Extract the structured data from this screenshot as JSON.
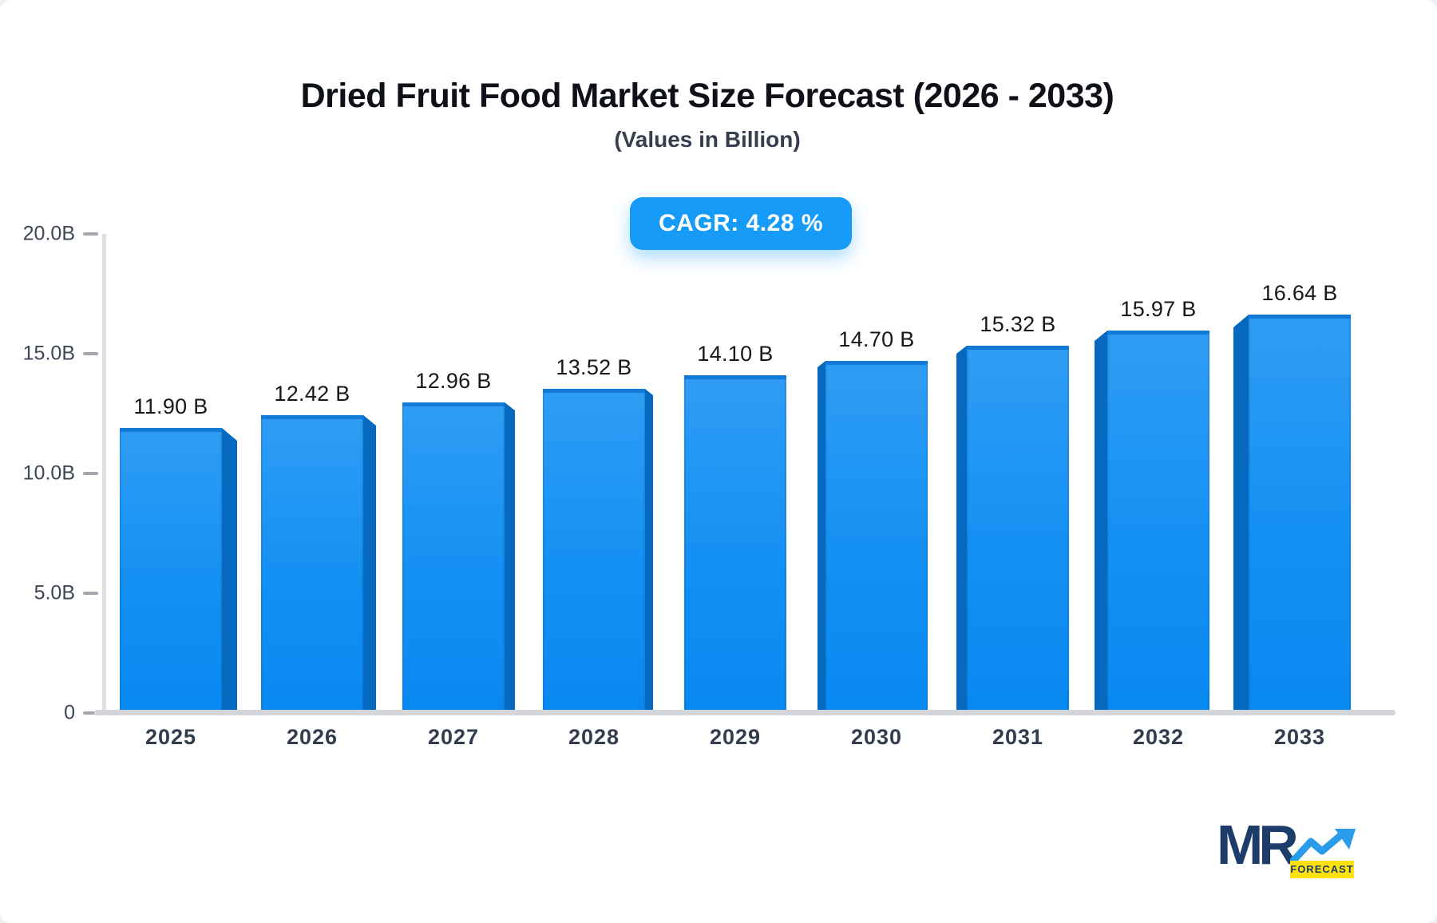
{
  "header": {
    "title": "Dried Fruit Food Market Size Forecast (2026 - 2033)",
    "subtitle": "(Values in Billion)",
    "cagr_badge": "CAGR: 4.28 %"
  },
  "chart_data": {
    "type": "bar",
    "title": "Dried Fruit Food Market Size Forecast (2026 - 2033)",
    "subtitle": "(Values in Billion)",
    "cagr_percent": 4.28,
    "categories": [
      "2025",
      "2026",
      "2027",
      "2028",
      "2029",
      "2030",
      "2031",
      "2032",
      "2033"
    ],
    "values": [
      11.9,
      12.42,
      12.96,
      13.52,
      14.1,
      14.7,
      15.32,
      15.97,
      16.64
    ],
    "value_labels": [
      "11.90 B",
      "12.42 B",
      "12.96 B",
      "13.52 B",
      "14.10 B",
      "14.70 B",
      "15.32 B",
      "15.97 B",
      "16.64 B"
    ],
    "xlabel": "",
    "ylabel": "",
    "ylim": [
      0,
      20
    ],
    "yticks": [
      {
        "label": "0",
        "value": 0
      },
      {
        "label": "5.0B",
        "value": 5
      },
      {
        "label": "10.0B",
        "value": 10
      },
      {
        "label": "15.0B",
        "value": 15
      },
      {
        "label": "20.0B",
        "value": 20
      }
    ],
    "grid": false,
    "legend": false
  },
  "colors": {
    "bar_face_top": "#2f9df5",
    "bar_face_bottom": "#0889f1",
    "bar_side": "#0569bf",
    "bar_top_strip": "#1379d8",
    "badge_bg": "#179bf9",
    "axis_line": "#dcdee2",
    "baseline": "#d3d5d9",
    "logo_navy": "#1d3c6b",
    "logo_arrow_blue": "#2b9ce9",
    "logo_yellow": "#ffe10c"
  },
  "logo": {
    "text": "MR",
    "sub": "FORECAST"
  }
}
